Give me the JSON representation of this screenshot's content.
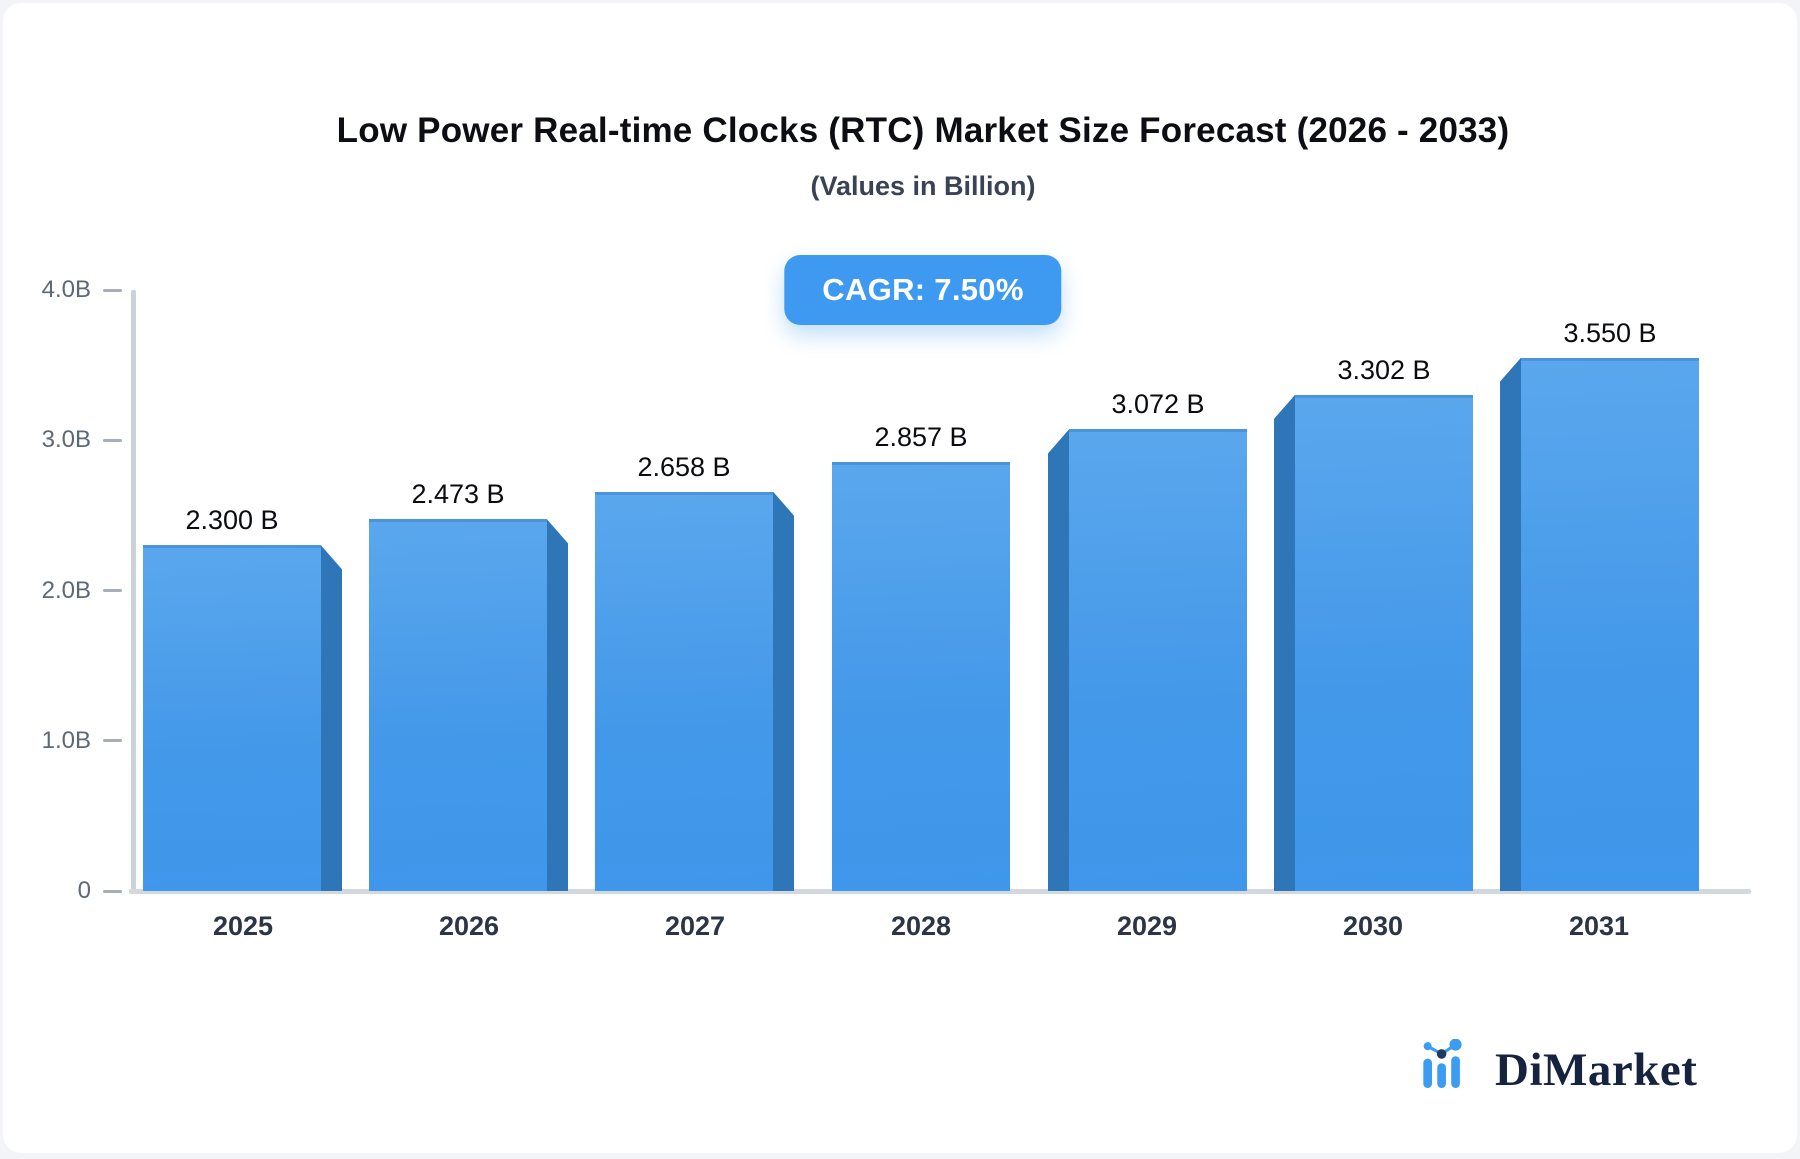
{
  "header": {
    "title": "Low Power Real-time Clocks (RTC) Market Size Forecast (2026 - 2033)",
    "subtitle": "(Values in Billion)"
  },
  "badge": {
    "label": "CAGR: 7.50%"
  },
  "chart_data": {
    "type": "bar",
    "title": "Low Power Real-time Clocks (RTC) Market Size Forecast (2026 - 2033)",
    "subtitle": "(Values in Billion)",
    "categories": [
      "2025",
      "2026",
      "2027",
      "2028",
      "2029",
      "2030",
      "2031"
    ],
    "values": [
      2.3,
      2.473,
      2.658,
      2.857,
      3.072,
      3.302,
      3.55
    ],
    "bar_labels": [
      "2.300 B",
      "2.473 B",
      "2.658 B",
      "2.857 B",
      "3.072 B",
      "3.302 B",
      "3.550 B"
    ],
    "xlabel": "",
    "ylabel": "",
    "ylim": [
      0,
      4.0
    ],
    "yticks": [
      {
        "label": "4.0B",
        "value": 4.0
      },
      {
        "label": "3.0B",
        "value": 3.0
      },
      {
        "label": "2.0B",
        "value": 2.0
      },
      {
        "label": "1.0B",
        "value": 1.0
      },
      {
        "label": "0",
        "value": 0.0
      }
    ],
    "grid": false,
    "legend": null,
    "bar_color": "#3f97eb",
    "bar_side_color": "#2e76b8",
    "badge_color": "#3e9af0"
  },
  "logo": {
    "text": "DiMarket"
  }
}
